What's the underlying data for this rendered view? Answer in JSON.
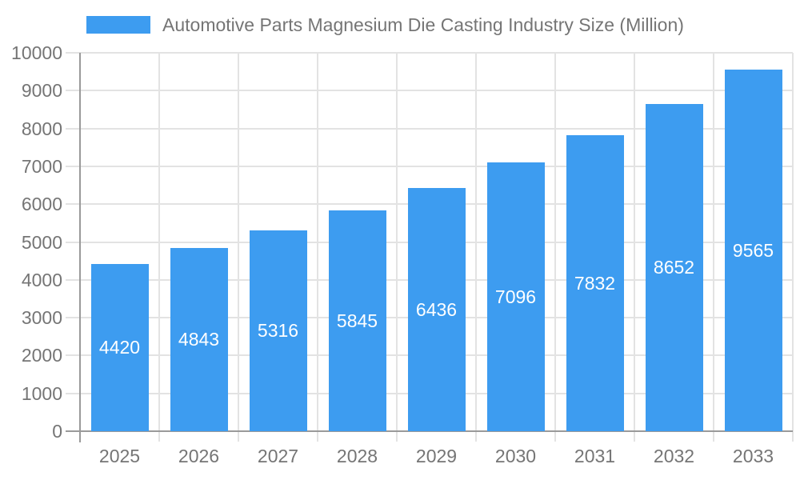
{
  "chart_data": {
    "type": "bar",
    "title": "Automotive Parts Magnesium Die Casting Industry Size (Million)",
    "legend": {
      "position": "top-left",
      "entries": [
        {
          "label": "Automotive Parts Magnesium Die Casting Industry Size (Million)",
          "color": "#3d9cf0"
        }
      ]
    },
    "categories": [
      "2025",
      "2026",
      "2027",
      "2028",
      "2029",
      "2030",
      "2031",
      "2032",
      "2033"
    ],
    "series": [
      {
        "name": "Automotive Parts Magnesium Die Casting Industry Size (Million)",
        "values": [
          4420,
          4843,
          5316,
          5845,
          6436,
          7096,
          7832,
          8652,
          9565
        ]
      }
    ],
    "value_labels": [
      "4420",
      "4843",
      "5316",
      "5845",
      "6436",
      "7096",
      "7832",
      "8652",
      "9565"
    ],
    "xlabel": "",
    "ylabel": "",
    "ylim": [
      0,
      10000
    ],
    "yticks": [
      0,
      1000,
      2000,
      3000,
      4000,
      5000,
      6000,
      7000,
      8000,
      9000,
      10000
    ],
    "grid": true,
    "colors": {
      "bar": "#3d9cf0",
      "value_label_text": "#ffffff",
      "axis_text": "#757575",
      "gridline": "#e3e3e3",
      "axis_line": "#9a9a9a",
      "background": "#ffffff"
    }
  }
}
